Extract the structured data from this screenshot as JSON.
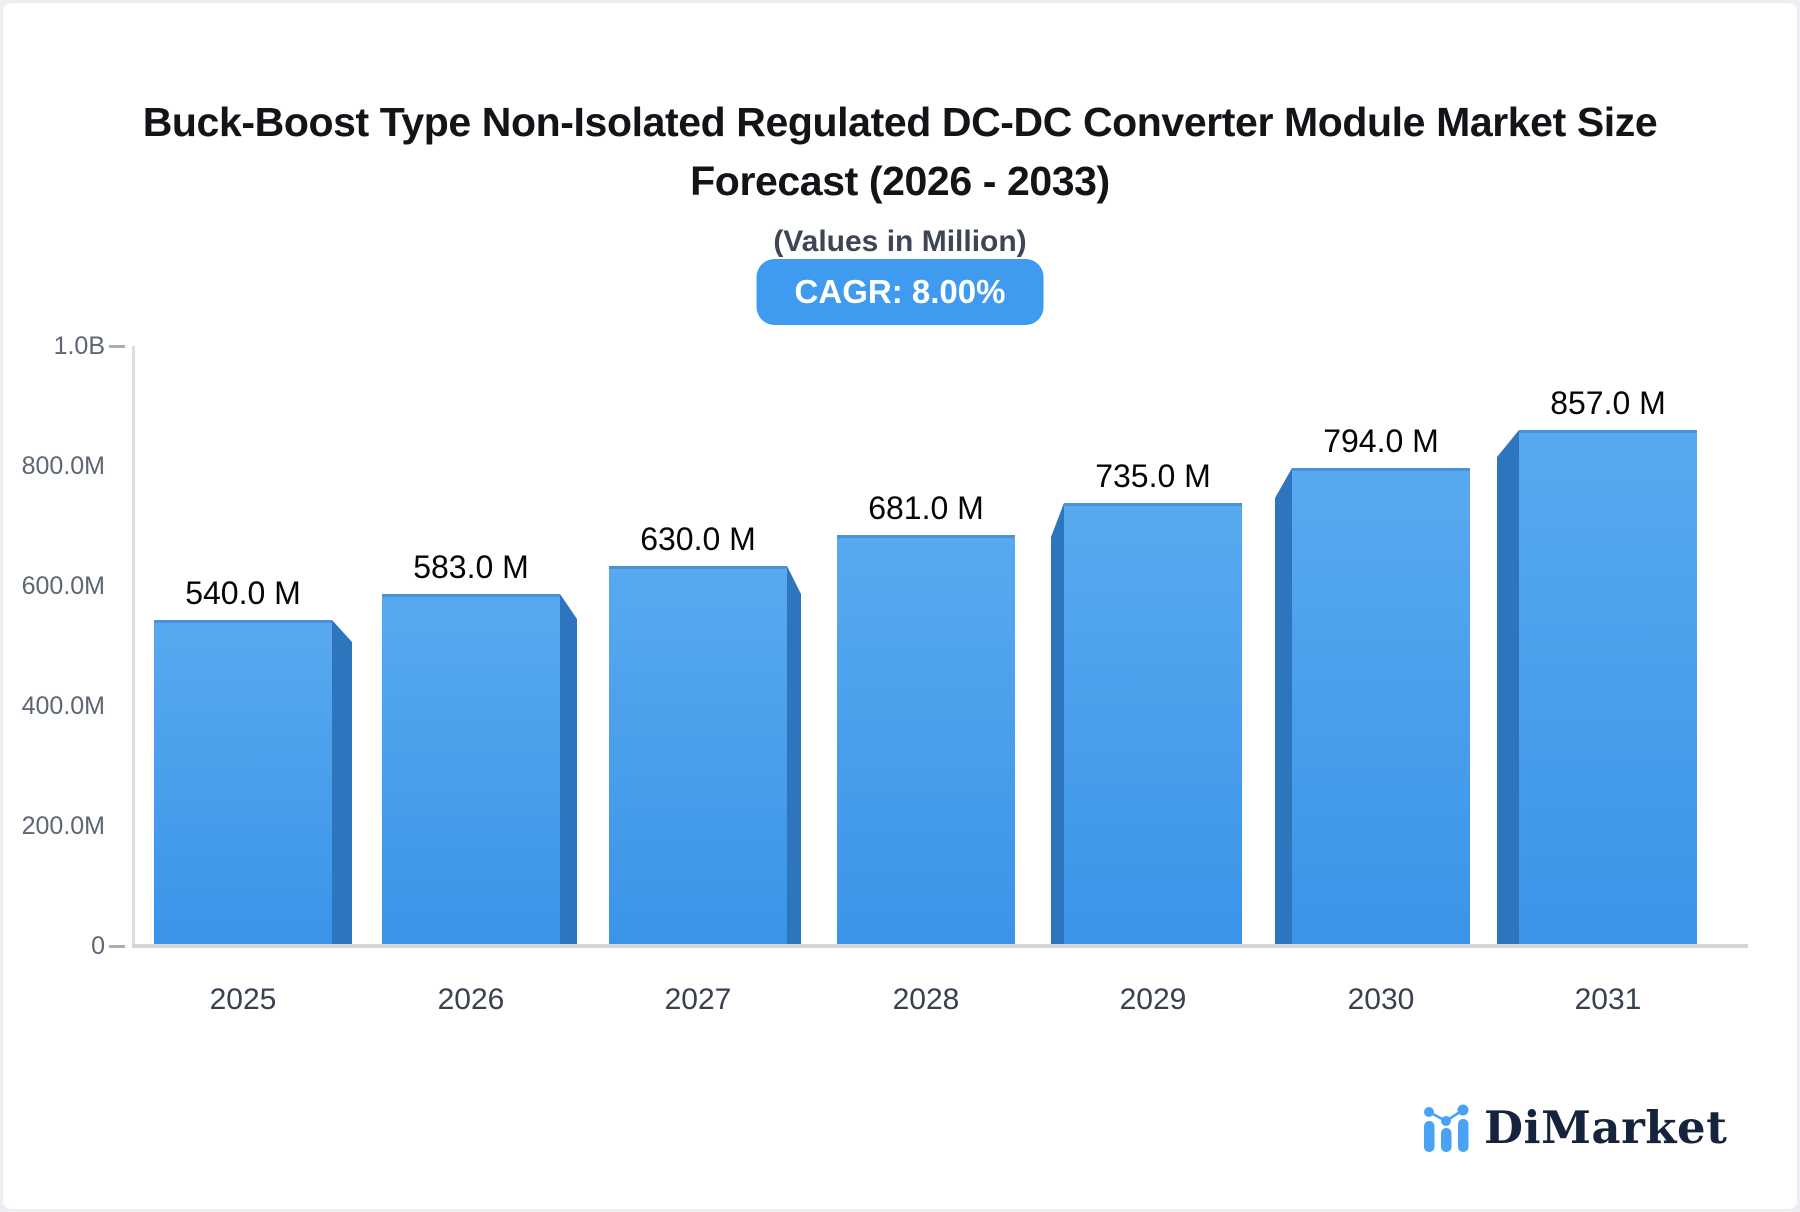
{
  "header": {
    "title_line1": "Buck-Boost Type Non-Isolated Regulated DC-DC Converter Module Market Size",
    "title_line2": "Forecast (2026 - 2033)",
    "subtitle": "(Values in Million)",
    "cagr_badge": "CAGR: 8.00%"
  },
  "chart_data": {
    "type": "bar",
    "title": "Buck-Boost Type Non-Isolated Regulated DC-DC Converter Module Market Size Forecast (2026 - 2033)",
    "subtitle": "(Values in Million)",
    "annotation": "CAGR: 8.00%",
    "categories": [
      "2025",
      "2026",
      "2027",
      "2028",
      "2029",
      "2030",
      "2031"
    ],
    "values": [
      540,
      583,
      630,
      681,
      735,
      794,
      857
    ],
    "value_labels": [
      "540.0 M",
      "583.0 M",
      "630.0 M",
      "681.0 M",
      "735.0 M",
      "794.0 M",
      "857.0 M"
    ],
    "xlabel": "",
    "ylabel": "",
    "ylim": [
      0,
      1000
    ],
    "y_ticks": [
      {
        "label": "1.0B",
        "value": 1000,
        "tick_dash": true
      },
      {
        "label": "800.0M",
        "value": 800,
        "tick_dash": false
      },
      {
        "label": "600.0M",
        "value": 600,
        "tick_dash": false
      },
      {
        "label": "400.0M",
        "value": 400,
        "tick_dash": false
      },
      {
        "label": "200.0M",
        "value": 200,
        "tick_dash": false
      },
      {
        "label": "0",
        "value": 0,
        "tick_dash": true
      }
    ],
    "grid": false,
    "legend": false,
    "bar_style_3d": true
  },
  "branding": {
    "logo_text": "DiMarket"
  },
  "colors": {
    "accent": "#3e9bf0",
    "bar_top": "#58a9ef",
    "bar_bottom": "#3b94e9",
    "bar_side": "#2d76bd",
    "logo_blue": "#4aa2f5",
    "logo_navy": "#16233c"
  }
}
